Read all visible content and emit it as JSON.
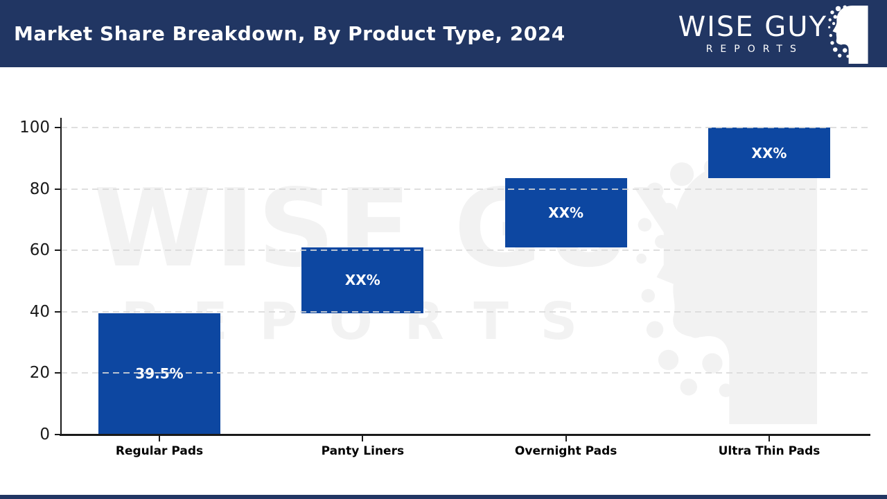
{
  "header": {
    "title": "Market Share Breakdown, By Product Type, 2024",
    "bg_color": "#213663",
    "logo": {
      "line1": "WISE GUY",
      "line2": "REPORTS"
    }
  },
  "watermark": {
    "line1": "WISE GUY",
    "line2": "REPORTS"
  },
  "chart_data": {
    "type": "bar",
    "subtype": "waterfall",
    "title": "Market Share Breakdown, By Product Type, 2024",
    "categories": [
      "Regular Pads",
      "Panty Liners",
      "Overnight Pads",
      "Ultra Thin Pads"
    ],
    "segments": [
      {
        "category": "Regular Pads",
        "start": 0,
        "end": 39.5,
        "label": "39.5%"
      },
      {
        "category": "Panty Liners",
        "start": 39.5,
        "end": 61,
        "label": "XX%"
      },
      {
        "category": "Overnight Pads",
        "start": 61,
        "end": 83.5,
        "label": "XX%"
      },
      {
        "category": "Ultra Thin Pads",
        "start": 83.5,
        "end": 100,
        "label": "XX%"
      }
    ],
    "yticks": [
      0,
      20,
      40,
      60,
      80,
      100
    ],
    "ylim": [
      0,
      103
    ],
    "xlabel": "",
    "ylabel": "",
    "grid": "horizontal-dashed",
    "legend": "none",
    "bar_color": "#0d47a1",
    "bar_label_color": "#ffffff",
    "axis_color": "#1a1a1a",
    "gridline_color": "#d9d9d9",
    "header_color": "#213663"
  },
  "footer": {
    "bar_color": "#213663"
  }
}
